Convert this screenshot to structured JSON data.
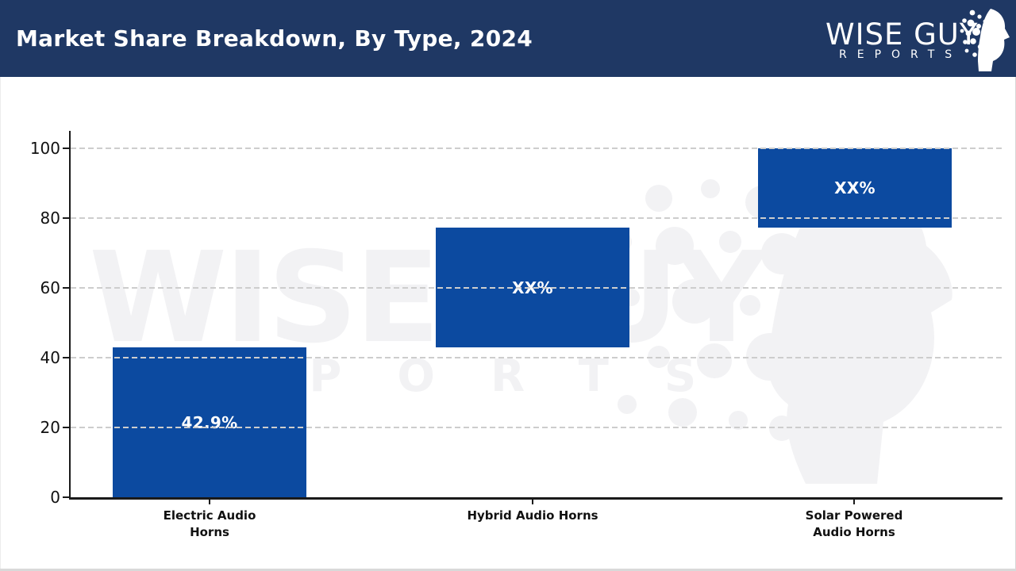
{
  "header": {
    "title": "Market Share Breakdown, By Type, 2024",
    "logo": {
      "line1": "WISE GUY",
      "line2": "REPORTS"
    }
  },
  "watermark": {
    "line1": "WISE GUY",
    "line2": "REPORTS"
  },
  "chart_data": {
    "type": "bar",
    "variant": "waterfall",
    "title": "Market Share Breakdown, By Type, 2024",
    "categories": [
      "Electric Audio Horns",
      "Hybrid Audio Horns",
      "Solar Powered Audio Horns"
    ],
    "category_label_lines": [
      [
        "Electric Audio",
        "Horns"
      ],
      [
        "Hybrid Audio Horns",
        ""
      ],
      [
        "Solar Powered",
        "Audio Horns"
      ]
    ],
    "bars": [
      {
        "category": "Electric Audio Horns",
        "label": "42.9%",
        "start": 0,
        "end": 42.9
      },
      {
        "category": "Hybrid Audio Horns",
        "label": "XX%",
        "start": 42.9,
        "end": 77.3
      },
      {
        "category": "Solar Powered Audio Horns",
        "label": "XX%",
        "start": 77.3,
        "end": 100
      }
    ],
    "xlabel": "",
    "ylabel": "",
    "yticks": [
      "0",
      "20",
      "40",
      "60",
      "80",
      "100"
    ],
    "ylim": [
      0,
      105
    ],
    "grid": {
      "axis": "y",
      "style": "dashed",
      "color": "#d9d9d9",
      "above_bars": true
    },
    "legend": "none",
    "bar_color": "#0c4aa0",
    "bar_label_color": "#ffffff"
  },
  "colors": {
    "header_bg": "#1f3864",
    "bar": "#0c4aa0",
    "grid": "#d9d9d9",
    "axis": "#1a1a1a",
    "watermark": "#f2f2f4",
    "page_bg": "#ffffff"
  }
}
